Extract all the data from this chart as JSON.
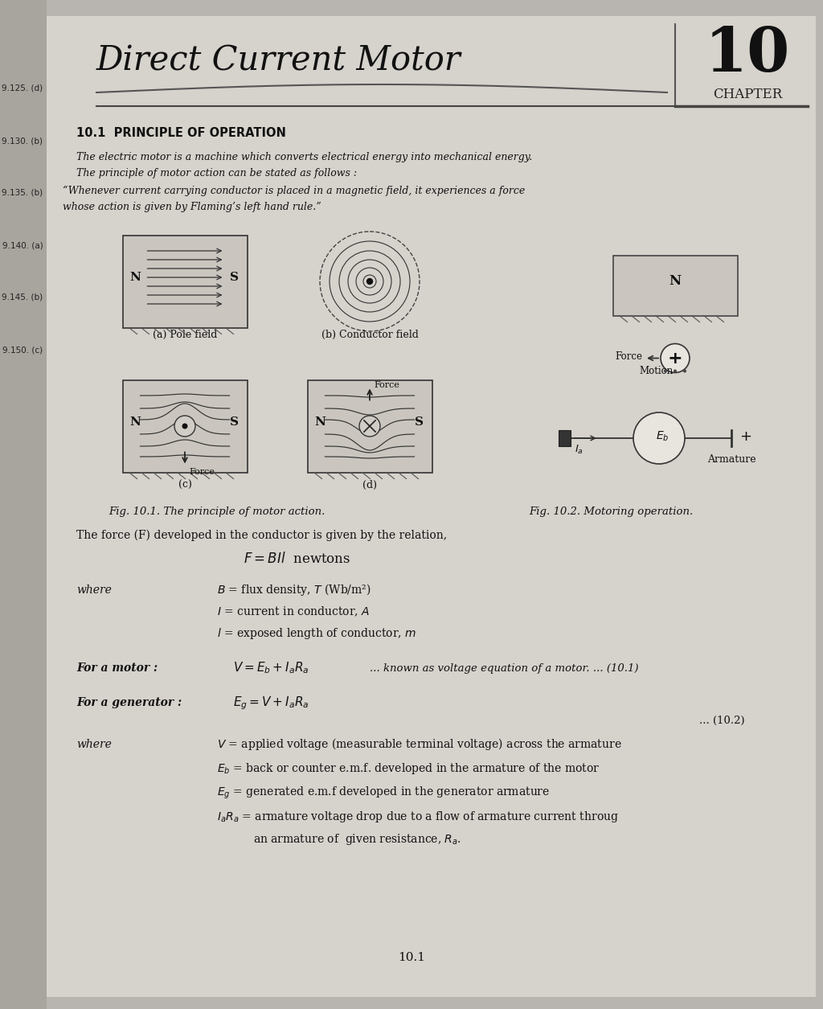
{
  "bg_color": "#b8b5b0",
  "page_bg": "#d6d2cc",
  "title": "Direct Current Motor",
  "chapter_num": "10",
  "chapter_label": "CHAPTER",
  "section": "10.1  PRINCIPLE OF OPERATION",
  "para1": "The electric motor is a machine which converts electrical energy into mechanical energy.",
  "para2": "The principle of motor action can be stated as follows :",
  "para3": "“Whenever current carrying conductor is placed in a magnetic field, it experiences a force",
  "para3b": "whose action is given by Flaming’s left hand rule.”",
  "fig1_label": "(a) Pole field",
  "fig2_label": "(b) Conductor field",
  "fig_force_label": "Force",
  "fig4_label": "(c)",
  "fig5_label": "(d)",
  "fig_caption1": "Fig. 10.1. The principle of motor action.",
  "fig_caption2": "Fig. 10.2. Motoring operation.",
  "force_text": "The force (F) developed in the conductor is given by the relation,",
  "eq_main": "$F = BIl$  newtons",
  "where_label": "where",
  "B_def": "$B$ = flux density, $T$ (Wb/m²)",
  "I_def": "$I$ = current in conductor, $A$",
  "l_def": "$l$ = exposed length of conductor, $m$",
  "motor_label": "For a motor :",
  "motor_eq": "$V = E_b + I_a R_a$",
  "motor_eq_tail": "... known as voltage equation of a motor. ... (10.1)",
  "gen_label": "For a generator :",
  "gen_eq": "$E_g = V + I_a R_a$",
  "gen_eq_num": "... (10.2)",
  "where2": "where",
  "V_def": "$V$ = applied voltage (measurable terminal voltage) across the armature",
  "Eb_def": "$E_b$ = back or counter e.m.f. developed in the armature of the motor",
  "Eg_def": "$E_g$ = generated e.m.f developed in the generator armature",
  "IaRa_def": "$I_a R_a$ = armature voltage drop due to a flow of armature current throug",
  "IaRa_def2": "an armature of  given resistance, $R_a$.",
  "page_num": "10.1",
  "left_margin_nums": [
    "9.125. (d)",
    "9.130. (b)",
    "9.135. (b)",
    "9.140. (a)",
    "9.145. (b)",
    "9.150. (c)"
  ]
}
